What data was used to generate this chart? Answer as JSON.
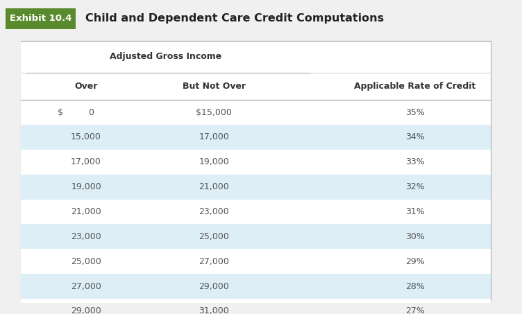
{
  "exhibit_label": "Exhibit 10.4",
  "title": "Child and Dependent Care Credit Computations",
  "col_header_merged": "Adjusted Gross Income",
  "col1_header": "Over",
  "col2_header": "But Not Over",
  "col3_header": "Applicable Rate of Credit",
  "rows": [
    [
      "$ 0",
      "$15,000",
      "35%"
    ],
    [
      "15,000",
      "17,000",
      "34%"
    ],
    [
      "17,000",
      "19,000",
      "33%"
    ],
    [
      "19,000",
      "21,000",
      "32%"
    ],
    [
      "21,000",
      "23,000",
      "31%"
    ],
    [
      "23,000",
      "25,000",
      "30%"
    ],
    [
      "25,000",
      "27,000",
      "29%"
    ],
    [
      "27,000",
      "29,000",
      "28%"
    ],
    [
      "29,000",
      "31,000",
      "27%"
    ]
  ],
  "exhibit_bg": "#5a8a2e",
  "exhibit_text_color": "#ffffff",
  "title_color": "#222222",
  "row_alt_color": "#ddeef7",
  "row_plain_color": "#ffffff",
  "table_border_color": "#aaaaaa",
  "text_color": "#555555",
  "header_text_color": "#333333",
  "background_color": "#f0f0f0"
}
